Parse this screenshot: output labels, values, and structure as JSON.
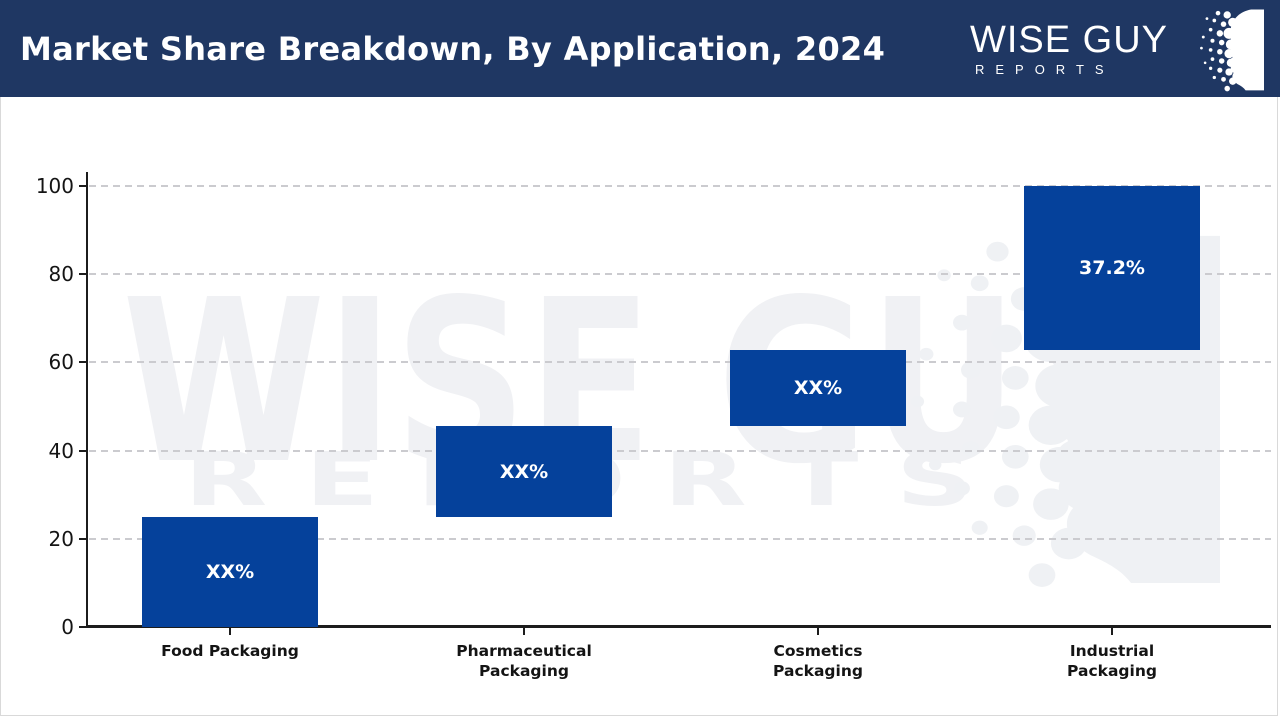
{
  "header": {
    "background": "#1f3763",
    "title": "Market Share Breakdown, By Application, 2024",
    "logo": {
      "line1": "WISE GUY",
      "line2": "REPORTS"
    }
  },
  "watermark": {
    "line1": "WISE GUY",
    "line2": "R E P O R T S"
  },
  "chart_data": {
    "type": "bar",
    "subtype": "floating-waterfall",
    "title": "Market Share Breakdown, By Application, 2024",
    "categories": [
      "Food Packaging",
      "Pharmaceutical Packaging",
      "Cosmetics Packaging",
      "Industrial Packaging"
    ],
    "bars": [
      {
        "category": "Food Packaging",
        "category_lines": [
          "Food Packaging"
        ],
        "start": 0,
        "end": 25,
        "value": 25,
        "label": "XX%"
      },
      {
        "category": "Pharmaceutical Packaging",
        "category_lines": [
          "Pharmaceutical",
          "Packaging"
        ],
        "start": 25,
        "end": 45.5,
        "value": 20.5,
        "label": "XX%"
      },
      {
        "category": "Cosmetics Packaging",
        "category_lines": [
          "Cosmetics",
          "Packaging"
        ],
        "start": 45.5,
        "end": 62.8,
        "value": 17.3,
        "label": "XX%"
      },
      {
        "category": "Industrial Packaging",
        "category_lines": [
          "Industrial",
          "Packaging"
        ],
        "start": 62.8,
        "end": 100,
        "value": 37.2,
        "label": "37.2%"
      }
    ],
    "yticks": [
      0,
      20,
      40,
      60,
      80,
      100
    ],
    "ylim": [
      0,
      105
    ],
    "xlabel": "",
    "ylabel": "",
    "bar_color": "#05419b",
    "grid": "horizontal-dashed",
    "legend": "none"
  }
}
